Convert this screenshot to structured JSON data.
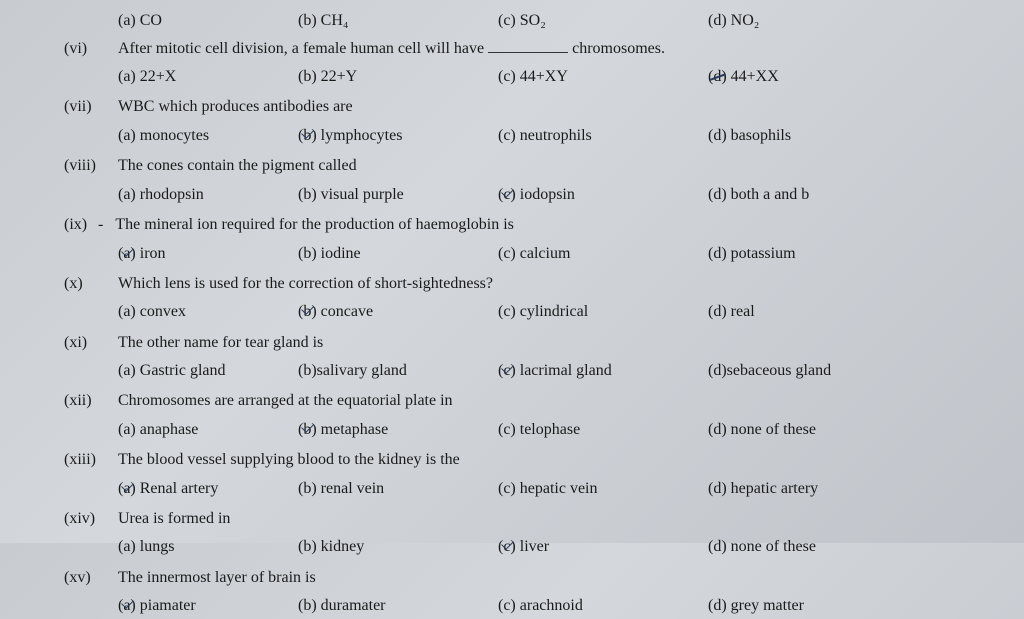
{
  "partial_top": {
    "a": "(a) CO",
    "b": "(b) CH₄",
    "c": "(c) SO₂",
    "d": "(d) NO₂"
  },
  "questions": [
    {
      "num": "(vi)",
      "text_before": "After mitotic cell division, a female human cell will have ",
      "text_after": " chromosomes.",
      "has_blank": true,
      "opts": {
        "a": "(a)  22+X",
        "b": "(b) 22+Y",
        "c": "(c) 44+XY",
        "d": "(d) 44+XX"
      },
      "mark_d": "strike"
    },
    {
      "num": "(vii)",
      "text": "WBC which produces antibodies are",
      "opts": {
        "a": "(a)  monocytes",
        "b": "(b) lymphocytes",
        "c": "(c) neutrophils",
        "d": "(d) basophils"
      },
      "mark_b": "tick"
    },
    {
      "num": "(viii)",
      "text": "The cones contain the pigment called",
      "opts": {
        "a": "(a)  rhodopsin",
        "b": "(b) visual purple",
        "c": "(c) iodopsin",
        "d": "(d) both a and b"
      },
      "mark_c": "tick"
    },
    {
      "num": "(ix)",
      "text": "The mineral ion required for the production of haemoglobin is",
      "dash": "-",
      "opts": {
        "a": "(a) iron",
        "b": "(b) iodine",
        "c": "(c) calcium",
        "d": "(d) potassium"
      },
      "mark_a": "tick"
    },
    {
      "num": "(x)",
      "text": "Which lens is used for the correction of short-sightedness?",
      "opts": {
        "a": "(a)  convex",
        "b": "(b) concave",
        "c": "(c) cylindrical",
        "d": "(d) real"
      },
      "mark_b": "tick"
    },
    {
      "num": "(xi)",
      "text": "The other name for tear gland is",
      "opts": {
        "a": "(a)  Gastric gland",
        "b": "(b)salivary gland",
        "c": "(c) lacrimal gland",
        "d": "(d)sebaceous gland"
      },
      "mark_c": "tick"
    },
    {
      "num": "(xii)",
      "text": "Chromosomes are arranged at the equatorial plate in",
      "opts": {
        "a": "(a)  anaphase",
        "b": "(b) metaphase",
        "c": "(c) telophase",
        "d": "(d) none of these"
      },
      "mark_b": "tick"
    },
    {
      "num": "(xiii)",
      "text": "The blood vessel supplying blood to the kidney is the",
      "opts": {
        "a": "(a) Renal artery",
        "b": "(b) renal vein",
        "c": "(c) hepatic vein",
        "d": "(d) hepatic artery"
      },
      "mark_a": "tick"
    },
    {
      "num": "(xiv)",
      "text": "Urea is formed in",
      "opts": {
        "a": "(a)  lungs",
        "b": "(b) kidney",
        "c": "(c) liver",
        "d": "(d) none of these"
      },
      "mark_c": "tick"
    },
    {
      "num": "(xv)",
      "text": "The innermost layer of brain is",
      "opts": {
        "a": "(a) piamater",
        "b": "(b) duramater",
        "c": "(c) arachnoid",
        "d": "(d) grey matter"
      },
      "mark_a": "tick"
    }
  ]
}
